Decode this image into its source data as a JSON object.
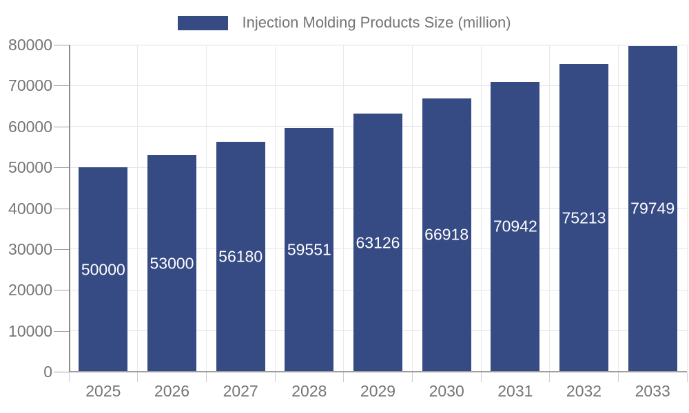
{
  "legend": {
    "label": "Injection Molding Products Size (million)",
    "swatch_color": "#364A84"
  },
  "colors": {
    "bar": "#364A84",
    "value_label": "#ffffff",
    "axis_text": "#757575",
    "background": "#ffffff"
  },
  "chart_data": {
    "type": "bar",
    "title": "Injection Molding Products Size (million)",
    "categories": [
      "2025",
      "2026",
      "2027",
      "2028",
      "2029",
      "2030",
      "2031",
      "2032",
      "2033"
    ],
    "series": [
      {
        "name": "Injection Molding Products Size (million)",
        "values": [
          50000,
          53000,
          56180,
          59551,
          63126,
          66918,
          70942,
          75213,
          79749
        ]
      }
    ],
    "value_labels_shown": true,
    "xlabel": "",
    "ylabel": "",
    "ylim": [
      0,
      80000
    ],
    "ytick_interval": 10000,
    "yticks": [
      0,
      10000,
      20000,
      30000,
      40000,
      50000,
      60000,
      70000,
      80000
    ],
    "ytick_labels": [
      "0",
      "10000",
      "20000",
      "30000",
      "40000",
      "50000",
      "60000",
      "70000",
      "80000"
    ],
    "grid": true,
    "legend_position": "top",
    "bar_color": "#364A84"
  }
}
